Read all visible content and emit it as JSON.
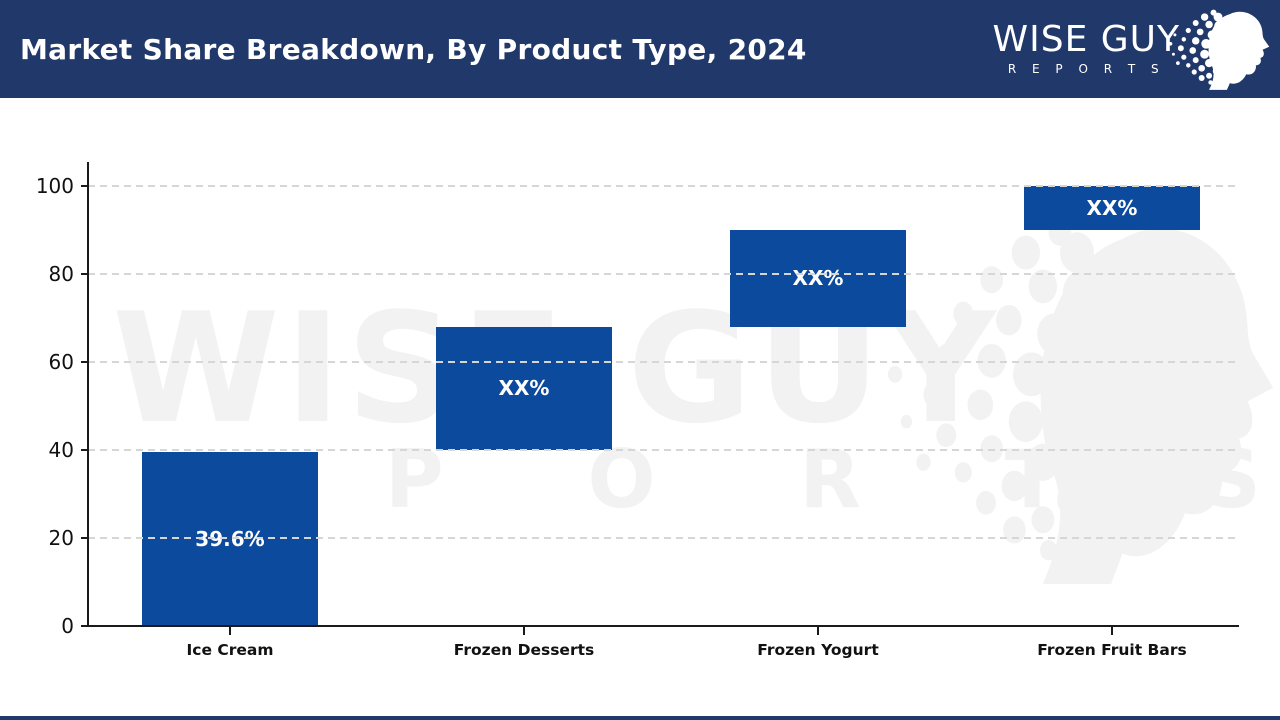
{
  "header": {
    "title": "Market Share Breakdown, By Product Type, 2024",
    "logo": {
      "line1": "WISE GUY",
      "line2": "R E P O R T S"
    }
  },
  "watermark": {
    "line1": "WISE GUY",
    "line2": "P O R T S"
  },
  "chart_data": {
    "type": "bar",
    "variant": "waterfall",
    "title": "Market Share Breakdown, By Product Type, 2024",
    "categories": [
      "Ice Cream",
      "Frozen Desserts",
      "Frozen Yogurt",
      "Frozen Fruit Bars"
    ],
    "segments": [
      {
        "category": "Ice Cream",
        "start": 0,
        "end": 39.6,
        "label": "39.6%"
      },
      {
        "category": "Frozen Desserts",
        "start": 40,
        "end": 68,
        "label": "XX%"
      },
      {
        "category": "Frozen Yogurt",
        "start": 68,
        "end": 90,
        "label": "XX%"
      },
      {
        "category": "Frozen Fruit Bars",
        "start": 90,
        "end": 100,
        "label": "XX%"
      }
    ],
    "xlabel": "",
    "ylabel": "",
    "yticks": [
      0,
      20,
      40,
      60,
      80,
      100
    ],
    "ylim": [
      0,
      105
    ],
    "grid": "horizontal-dashed",
    "legend": "none",
    "colors": {
      "bar": "#0C4A9E",
      "bar_label": "#FFFFFF",
      "grid": "#D6D6D6",
      "axis": "#1A1A1A",
      "header_bg": "#21386B",
      "watermark": "#F2F2F2"
    }
  }
}
